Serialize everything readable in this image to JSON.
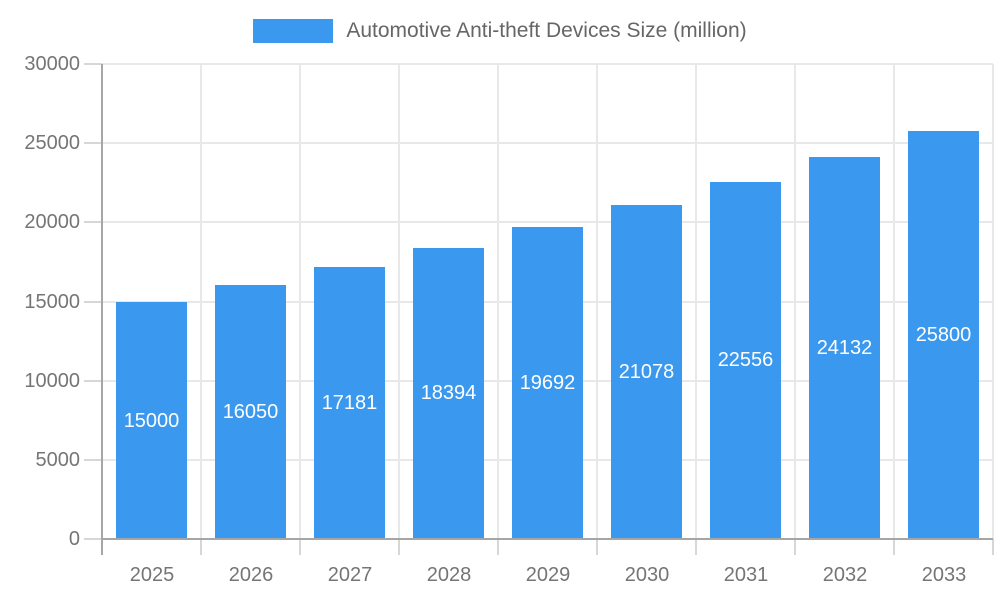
{
  "chart_data": {
    "type": "bar",
    "title": "Automotive Anti-theft Devices Size (million)",
    "series_name": "Automotive Anti-theft Devices Size (million)",
    "categories": [
      "2025",
      "2026",
      "2027",
      "2028",
      "2029",
      "2030",
      "2031",
      "2032",
      "2033"
    ],
    "values": [
      15000,
      16050,
      17181,
      18394,
      19692,
      21078,
      22556,
      24132,
      25800
    ],
    "value_labels": [
      "15000",
      "16050",
      "17181",
      "18394",
      "19692",
      "21078",
      "22556",
      "24132",
      "25800"
    ],
    "xlabel": "",
    "ylabel": "",
    "ylim": [
      0,
      30000
    ],
    "ytick_step": 5000,
    "yticks": [
      0,
      5000,
      10000,
      15000,
      20000,
      25000,
      30000
    ],
    "ytick_labels": [
      "0",
      "5000",
      "10000",
      "15000",
      "20000",
      "25000",
      "30000"
    ],
    "grid": true,
    "legend_position": "top",
    "value_labels_shown": true,
    "colors": {
      "bar": "#3A99EE",
      "value_label": "#FFFFFF",
      "tick_label": "#757575",
      "legend_text": "#666666",
      "gridline": "#E8E8E8",
      "tick_mark": "#D7D7D7",
      "axis": "#A6A6A6",
      "background": "#FFFFFF"
    }
  }
}
